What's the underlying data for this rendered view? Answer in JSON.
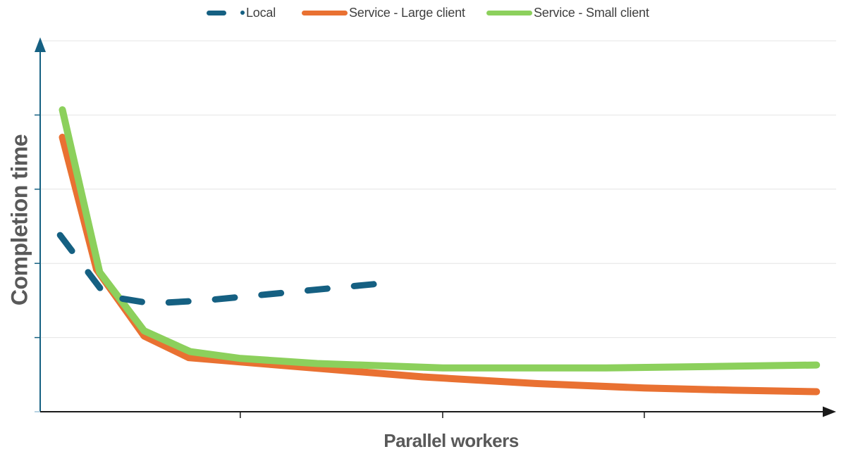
{
  "page": {
    "background": "#FFFFFF"
  },
  "colors": {
    "local": "#156082",
    "service_large": "#E97132",
    "service_small": "#8CD05C",
    "gridline": "#E4E4E4",
    "y_axis": "#156082",
    "x_axis": "#1A1A1A",
    "axis_title_text": "#595959",
    "legend_text": "#3F3F3F",
    "origin_tick": "#9DC3D8"
  },
  "legend": {
    "items": [
      {
        "label": "Local",
        "marker": "dash-dot",
        "color": "#156082"
      },
      {
        "label": "Service - Large client",
        "marker": "line",
        "color": "#E97132"
      },
      {
        "label": "Service - Small client",
        "marker": "line",
        "color": "#8CD05C"
      }
    ]
  },
  "axes": {
    "y_title": "Completion time",
    "x_title": "Parallel workers"
  },
  "chart_data": {
    "type": "line",
    "title": "",
    "xlabel": "Parallel workers",
    "ylabel": "Completion time",
    "note": "Axes carry no numeric tick labels. x values are fractions of the x-axis length; y values are in gridline units (1 unit = one horizontal gridline spacing above the x-axis).",
    "x_axis": {
      "range": [
        0,
        1
      ],
      "tick_positions": [
        0.252,
        0.507,
        0.761
      ],
      "tick_labels": [],
      "arrow": true
    },
    "y_axis": {
      "range": [
        0,
        5.2
      ],
      "gridlines": [
        1,
        2,
        3,
        4,
        5
      ],
      "tick_positions": [
        0,
        1,
        2,
        3,
        4
      ],
      "tick_labels": [],
      "arrow": true
    },
    "grid": "horizontal-only",
    "legend_position": "top-center",
    "series": [
      {
        "name": "Service - Large client",
        "color": "#E97132",
        "style": "solid",
        "width": 10,
        "points": [
          [
            0.028,
            3.7
          ],
          [
            0.071,
            1.92
          ],
          [
            0.131,
            1.02
          ],
          [
            0.187,
            0.73
          ],
          [
            0.287,
            0.64
          ],
          [
            0.482,
            0.47
          ],
          [
            0.624,
            0.38
          ],
          [
            0.761,
            0.32
          ],
          [
            0.873,
            0.29
          ],
          [
            0.978,
            0.27
          ]
        ]
      },
      {
        "name": "Service - Small client",
        "color": "#8CD05C",
        "style": "solid",
        "width": 10,
        "points": [
          [
            0.028,
            4.07
          ],
          [
            0.075,
            1.88
          ],
          [
            0.131,
            1.09
          ],
          [
            0.189,
            0.81
          ],
          [
            0.251,
            0.72
          ],
          [
            0.349,
            0.65
          ],
          [
            0.507,
            0.59
          ],
          [
            0.713,
            0.59
          ],
          [
            0.846,
            0.61
          ],
          [
            0.978,
            0.63
          ]
        ]
      },
      {
        "name": "Local",
        "color": "#156082",
        "style": "dashed",
        "dash": "28 38",
        "width": 9,
        "points": [
          [
            0.025,
            2.38
          ],
          [
            0.083,
            1.56
          ],
          [
            0.14,
            1.46
          ],
          [
            0.207,
            1.5
          ],
          [
            0.322,
            1.62
          ],
          [
            0.451,
            1.75
          ]
        ]
      }
    ]
  }
}
